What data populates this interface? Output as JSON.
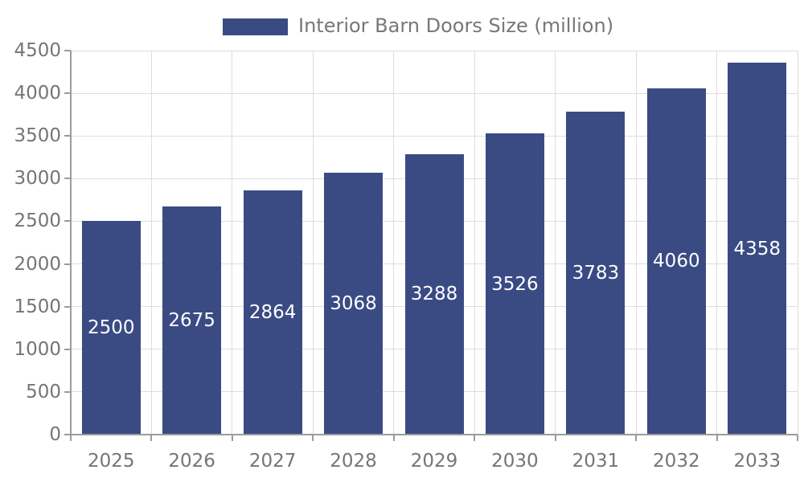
{
  "chart_data": {
    "type": "bar",
    "title": "Interior Barn Doors Size (million)",
    "legend": [
      "Interior Barn Doors Size (million)"
    ],
    "legend_position": "top-center",
    "categories": [
      "2025",
      "2026",
      "2027",
      "2028",
      "2029",
      "2030",
      "2031",
      "2032",
      "2033"
    ],
    "values": [
      2500,
      2675,
      2864,
      3068,
      3288,
      3526,
      3783,
      4060,
      4358
    ],
    "xlabel": "",
    "ylabel": "",
    "ylim": [
      0,
      4500
    ],
    "ytick_step": 500,
    "ytick_labels": [
      "0",
      "500",
      "1000",
      "1500",
      "2000",
      "2500",
      "3000",
      "3500",
      "4000",
      "4500"
    ],
    "grid": true,
    "bar_label_position": "inside-center",
    "colors": {
      "bar": "#3A4B84",
      "bar_label": "#FFFFFF",
      "gridline": "#DDDDDD",
      "axis_line": "#9B9B9B",
      "tick_label": "#757575",
      "legend_text": "#76777A",
      "background": "#FFFFFF"
    }
  }
}
